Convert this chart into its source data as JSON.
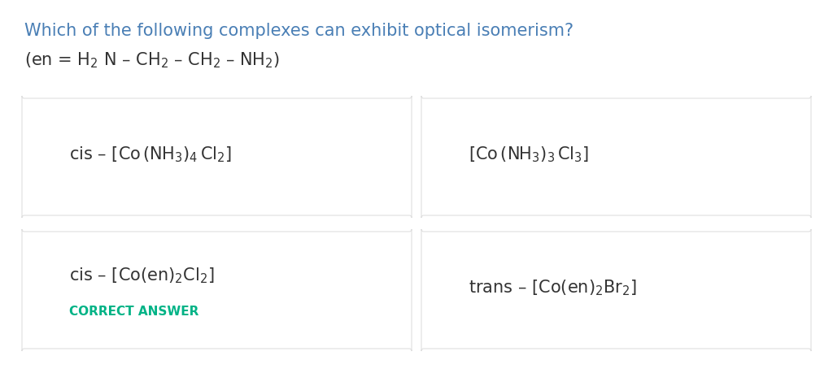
{
  "background_color": "#ffffff",
  "card_color": "#ffffff",
  "card_edge_color": "#e0e0e0",
  "title": "Which of the following complexes can exhibit optical isomerism?",
  "title_color": "#4a7fb5",
  "subtitle": "(en = H$_2$ N – CH$_2$ – CH$_2$ – NH$_2$)",
  "subtitle_color": "#333333",
  "options": [
    {
      "text": "cis – [Co$\\,(\\mathrm{NH}_3)_4\\,$Cl$_2$]",
      "correct": false
    },
    {
      "text": "[Co$\\,(\\mathrm{NH}_3)_3\\,$Cl$_3$]",
      "correct": false
    },
    {
      "text": "cis – [Co(en)$_2$Cl$_2$]",
      "correct": true
    },
    {
      "text": "trans – [Co(en)$_2$Br$_2$]",
      "correct": false
    }
  ],
  "correct_label": "CORRECT ANSWER",
  "correct_color": "#00b386",
  "text_color": "#333333",
  "title_fontsize": 15,
  "option_fontsize": 15,
  "correct_fontsize": 11
}
